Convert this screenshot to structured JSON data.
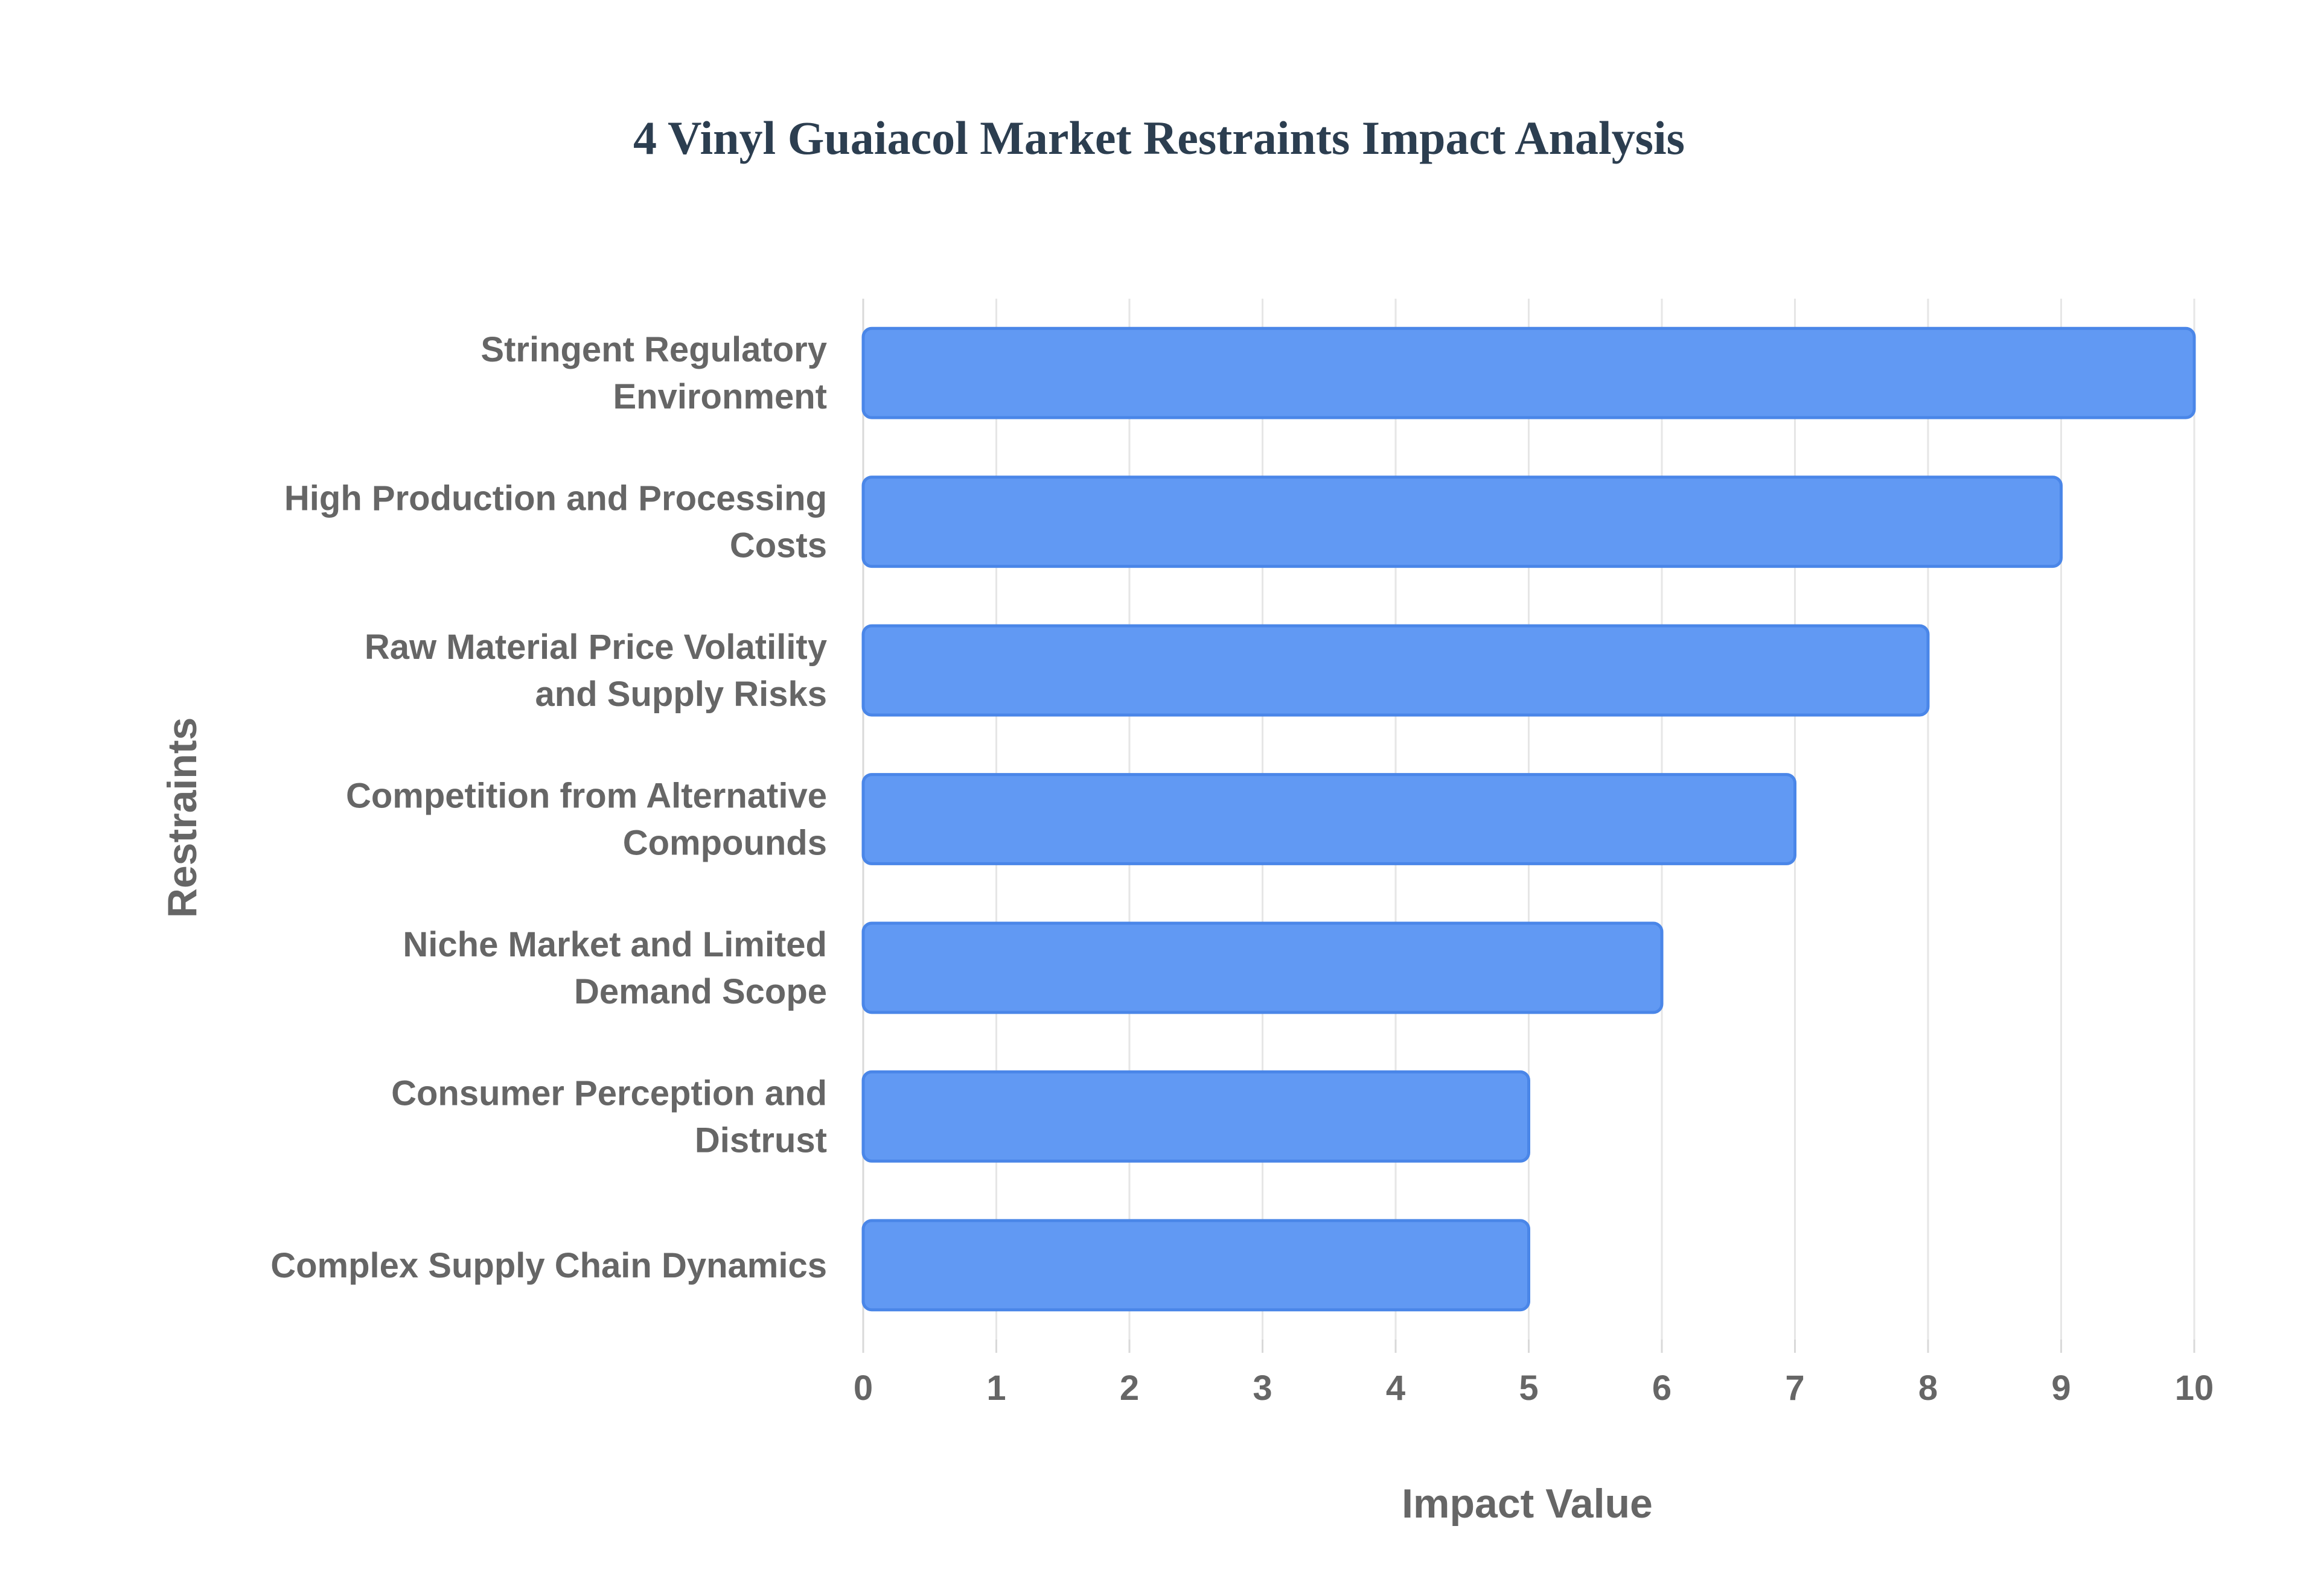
{
  "chart_data": {
    "type": "bar",
    "orientation": "horizontal",
    "title": "4 Vinyl Guaiacol Market Restraints Impact Analysis",
    "xlabel": "Impact Value",
    "ylabel": "Restraints",
    "xlim": [
      0,
      10
    ],
    "x_ticks": [
      "0",
      "1",
      "2",
      "3",
      "4",
      "5",
      "6",
      "7",
      "8",
      "9",
      "10"
    ],
    "grid": true,
    "categories": [
      [
        "Stringent Regulatory",
        "Environment"
      ],
      [
        "High Production and Processing",
        "Costs"
      ],
      [
        "Raw Material Price Volatility",
        "and Supply Risks"
      ],
      [
        "Competition from Alternative",
        "Compounds"
      ],
      [
        "Niche Market and Limited",
        "Demand Scope"
      ],
      [
        "Consumer Perception and",
        "Distrust"
      ],
      [
        "Complex Supply Chain Dynamics"
      ]
    ],
    "values": [
      10,
      9,
      8,
      7,
      6,
      5,
      5
    ],
    "colors": {
      "bar_fill": "#6199f3",
      "bar_stroke": "#4a86e8",
      "title": "#2c3e50",
      "text": "#666666",
      "grid": "#e6e6e6"
    }
  }
}
